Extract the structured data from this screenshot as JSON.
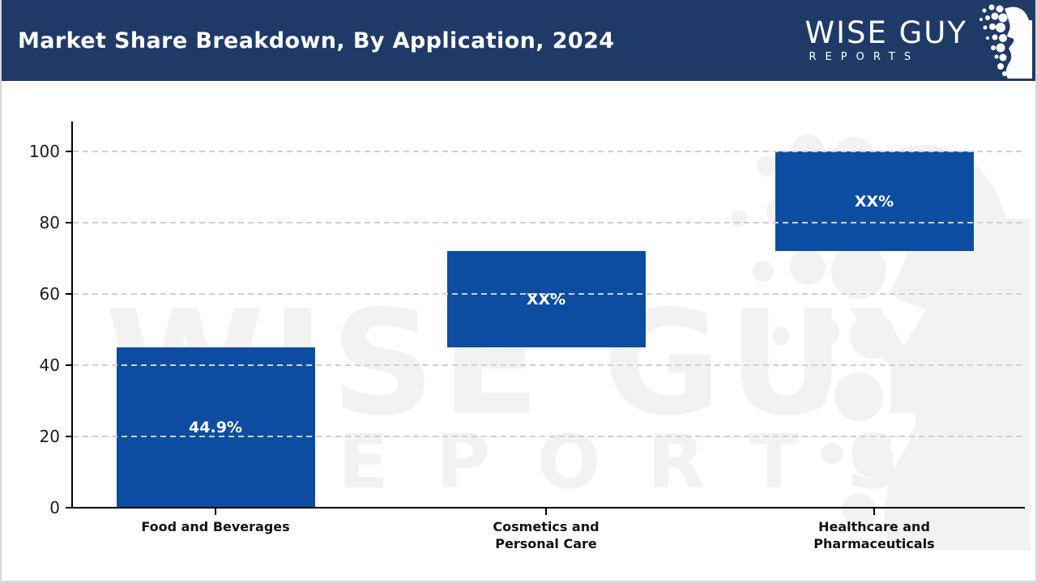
{
  "header": {
    "title": "Market Share Breakdown, By Application, 2024",
    "logo": {
      "wordmark": "WISE GUY",
      "sub": "REPORTS"
    }
  },
  "watermark": {
    "wordmark": "WISE GUY",
    "sub": "REPORTS"
  },
  "colors": {
    "header_bg": "#203a68",
    "header_text": "#ffffff",
    "bar_fill": "#0c4da2",
    "bar_label_text": "#ffffff",
    "axis_line": "#000000",
    "tick_text": "#1a1a1a",
    "gridline": "#d0d0d0",
    "watermark_text": "#f2f2f2",
    "page_border": "#d9d9d9"
  },
  "chart_data": {
    "type": "bar",
    "subtype": "floating-segment waterfall of cumulative market share",
    "title": "Market Share Breakdown, By Application, 2024",
    "categories": [
      "Food and Beverages",
      "Cosmetics and\nPersonal Care",
      "Healthcare and\nPharmaceuticals"
    ],
    "segments": [
      {
        "category": "Food and Beverages",
        "start": 0,
        "end": 44.9,
        "label": "44.9%"
      },
      {
        "category": "Cosmetics and Personal Care",
        "start": 44.9,
        "end": 72,
        "label": "XX%"
      },
      {
        "category": "Healthcare and Pharmaceuticals",
        "start": 72,
        "end": 100,
        "label": "XX%"
      }
    ],
    "xlabel": "",
    "ylabel": "",
    "ylim": [
      0,
      100
    ],
    "yticks": [
      0,
      20,
      40,
      60,
      80,
      100
    ],
    "grid": "horizontal dashed, drawn over bars",
    "legend": "none"
  }
}
